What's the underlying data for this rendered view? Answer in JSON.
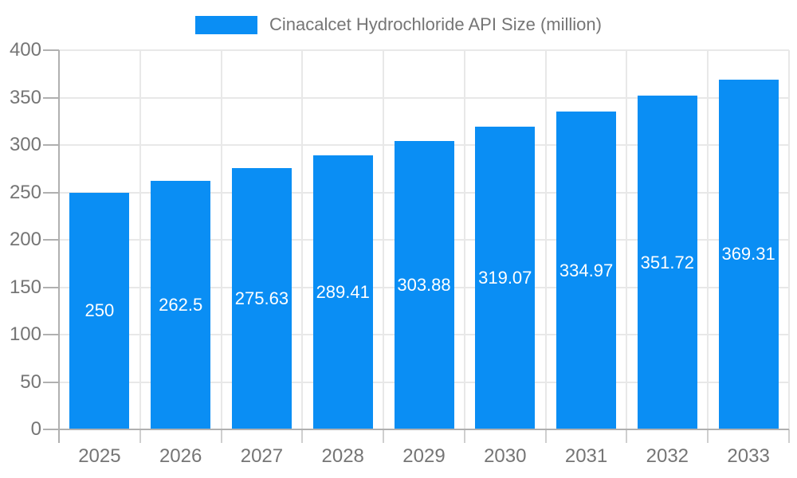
{
  "chart_data": {
    "type": "bar",
    "title": "",
    "legend": {
      "label": "Cinacalcet Hydrochloride API Size (million)",
      "position": "top-center"
    },
    "categories": [
      "2025",
      "2026",
      "2027",
      "2028",
      "2029",
      "2030",
      "2031",
      "2032",
      "2033"
    ],
    "series": [
      {
        "name": "Cinacalcet Hydrochloride API Size (million)",
        "values": [
          250,
          262.5,
          275.63,
          289.41,
          303.88,
          319.07,
          334.97,
          351.72,
          369.31
        ],
        "data_labels": [
          "250",
          "262.5",
          "275.63",
          "289.41",
          "303.88",
          "319.07",
          "334.97",
          "351.72",
          "369.31"
        ]
      }
    ],
    "xlabel": "",
    "ylabel": "",
    "ylim": [
      0,
      400
    ],
    "yticks": [
      0,
      50,
      100,
      150,
      200,
      250,
      300,
      350,
      400
    ],
    "grid": {
      "horizontal": true,
      "vertical": true
    },
    "colors": {
      "bar": "#0a8ef4",
      "bar_label_text": "#ffffff",
      "axis_text": "#757575",
      "grid_line": "#e8e8e8",
      "axis_line": "#b0b0b0",
      "background": "#ffffff"
    }
  }
}
